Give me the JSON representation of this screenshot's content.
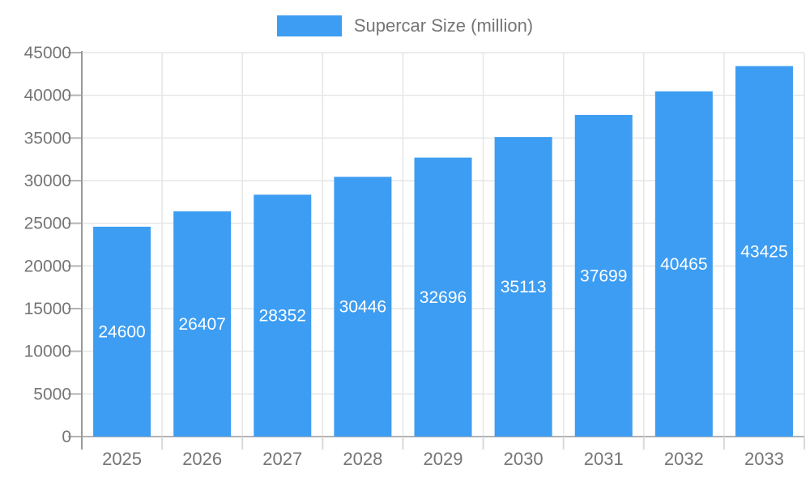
{
  "legend": {
    "label": "Supercar Size (million)"
  },
  "colors": {
    "bar": "#3d9df2",
    "grid": "#e6e6e6",
    "axis_line": "#999999",
    "baseline": "#b3b3b3",
    "y_tick": "#b3b3b3",
    "x_tick": "#d9d9d9",
    "label_text": "#757575",
    "value_text": "#ffffff",
    "background": "#ffffff"
  },
  "chart_data": {
    "type": "bar",
    "title": "",
    "categories": [
      "2025",
      "2026",
      "2027",
      "2028",
      "2029",
      "2030",
      "2031",
      "2032",
      "2033"
    ],
    "values": [
      24600,
      26407,
      28352,
      30446,
      32696,
      35113,
      37699,
      40465,
      43425
    ],
    "series_name": "Supercar Size (million)",
    "xlabel": "",
    "ylabel": "",
    "ylim": [
      0,
      45000
    ],
    "ytick_step": 5000,
    "ytick_labels": [
      "0",
      "5000",
      "10000",
      "15000",
      "20000",
      "25000",
      "30000",
      "35000",
      "40000",
      "45000"
    ],
    "grid": true,
    "legend_position": "top-center",
    "value_labels": "inside-center-white"
  }
}
